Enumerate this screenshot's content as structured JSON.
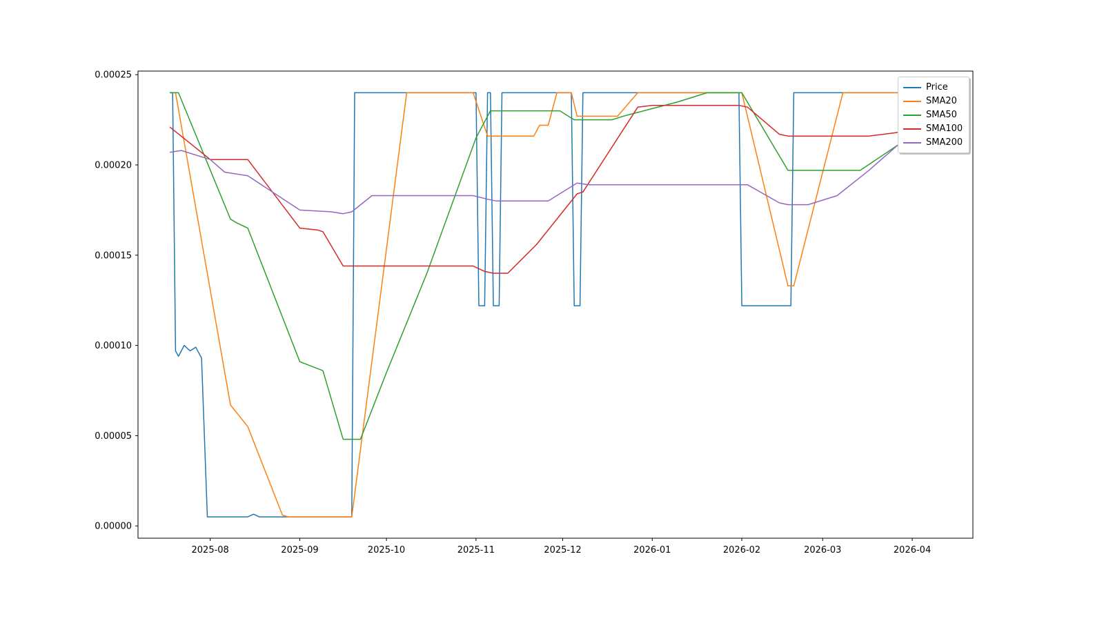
{
  "figure": {
    "background": "#ffffff",
    "axes_background": "#ffffff",
    "spine_color": "#000000",
    "tick_color": "#000000"
  },
  "chart_data": {
    "type": "line",
    "title": "",
    "xlabel": "",
    "ylabel": "",
    "grid": false,
    "x_axis": {
      "type": "date",
      "range": [
        "2025-07-07",
        "2026-04-22"
      ],
      "tick_dates": [
        "2025-08-01",
        "2025-09-01",
        "2025-10-01",
        "2025-11-01",
        "2025-12-01",
        "2026-01-01",
        "2026-02-01",
        "2026-03-01",
        "2026-04-01"
      ],
      "tick_labels": [
        "2025-08",
        "2025-09",
        "2025-10",
        "2025-11",
        "2025-12",
        "2026-01",
        "2026-02",
        "2026-03",
        "2026-04"
      ]
    },
    "y_axis": {
      "range": [
        -6.8e-06,
        0.000252
      ],
      "tick_values": [
        0.0,
        5e-05,
        0.0001,
        0.00015,
        0.0002,
        0.00025
      ],
      "tick_labels": [
        "0.00000",
        "0.00005",
        "0.00010",
        "0.00015",
        "0.00020",
        "0.00025"
      ]
    },
    "legend": {
      "position": "upper right",
      "entries": [
        "Price",
        "SMA20",
        "SMA50",
        "SMA100",
        "SMA200"
      ]
    },
    "series": [
      {
        "name": "Price",
        "color": "#1f77b4",
        "points": [
          [
            "2025-07-18",
            0.00024
          ],
          [
            "2025-07-19",
            0.00024
          ],
          [
            "2025-07-20",
            9.7e-05
          ],
          [
            "2025-07-21",
            9.4e-05
          ],
          [
            "2025-07-23",
            0.0001
          ],
          [
            "2025-07-25",
            9.7e-05
          ],
          [
            "2025-07-27",
            9.9e-05
          ],
          [
            "2025-07-29",
            9.3e-05
          ],
          [
            "2025-07-31",
            5e-06
          ],
          [
            "2025-08-14",
            5e-06
          ],
          [
            "2025-08-16",
            6.5e-06
          ],
          [
            "2025-08-18",
            5e-06
          ],
          [
            "2025-09-19",
            5e-06
          ],
          [
            "2025-09-20",
            0.00024
          ],
          [
            "2025-11-01",
            0.00024
          ],
          [
            "2025-11-02",
            0.000122
          ],
          [
            "2025-11-04",
            0.000122
          ],
          [
            "2025-11-05",
            0.00024
          ],
          [
            "2025-11-06",
            0.00024
          ],
          [
            "2025-11-07",
            0.000122
          ],
          [
            "2025-11-09",
            0.000122
          ],
          [
            "2025-11-10",
            0.00024
          ],
          [
            "2025-12-04",
            0.00024
          ],
          [
            "2025-12-05",
            0.000122
          ],
          [
            "2025-12-07",
            0.000122
          ],
          [
            "2025-12-08",
            0.00024
          ],
          [
            "2026-01-31",
            0.00024
          ],
          [
            "2026-02-01",
            0.000122
          ],
          [
            "2026-02-18",
            0.000122
          ],
          [
            "2026-02-19",
            0.00024
          ],
          [
            "2026-03-27",
            0.00024
          ]
        ]
      },
      {
        "name": "SMA20",
        "color": "#ff7f0e",
        "points": [
          [
            "2025-07-18",
            0.00024
          ],
          [
            "2025-07-20",
            0.00024
          ],
          [
            "2025-08-08",
            6.7e-05
          ],
          [
            "2025-08-14",
            5.5e-05
          ],
          [
            "2025-08-26",
            6e-06
          ],
          [
            "2025-08-28",
            5e-06
          ],
          [
            "2025-09-19",
            5e-06
          ],
          [
            "2025-10-08",
            0.00024
          ],
          [
            "2025-10-31",
            0.00024
          ],
          [
            "2025-11-05",
            0.000216
          ],
          [
            "2025-11-21",
            0.000216
          ],
          [
            "2025-11-23",
            0.000222
          ],
          [
            "2025-11-26",
            0.000222
          ],
          [
            "2025-11-29",
            0.00024
          ],
          [
            "2025-12-04",
            0.00024
          ],
          [
            "2025-12-06",
            0.000227
          ],
          [
            "2025-12-20",
            0.000227
          ],
          [
            "2025-12-27",
            0.00024
          ],
          [
            "2026-02-01",
            0.00024
          ],
          [
            "2026-02-17",
            0.000133
          ],
          [
            "2026-02-19",
            0.000133
          ],
          [
            "2026-03-08",
            0.00024
          ],
          [
            "2026-03-27",
            0.00024
          ]
        ]
      },
      {
        "name": "SMA50",
        "color": "#2ca02c",
        "points": [
          [
            "2025-07-18",
            0.00024
          ],
          [
            "2025-07-21",
            0.00024
          ],
          [
            "2025-08-08",
            0.00017
          ],
          [
            "2025-08-10",
            0.000168
          ],
          [
            "2025-08-14",
            0.000165
          ],
          [
            "2025-09-01",
            9.1e-05
          ],
          [
            "2025-09-09",
            8.6e-05
          ],
          [
            "2025-09-16",
            4.8e-05
          ],
          [
            "2025-09-22",
            4.8e-05
          ],
          [
            "2025-10-01",
            8.5e-05
          ],
          [
            "2025-10-15",
            0.00014
          ],
          [
            "2025-11-01",
            0.000215
          ],
          [
            "2025-11-06",
            0.00023
          ],
          [
            "2025-11-30",
            0.00023
          ],
          [
            "2025-12-05",
            0.000225
          ],
          [
            "2025-12-18",
            0.000225
          ],
          [
            "2025-12-22",
            0.000227
          ],
          [
            "2026-01-10",
            0.000235
          ],
          [
            "2026-01-20",
            0.00024
          ],
          [
            "2026-02-01",
            0.00024
          ],
          [
            "2026-02-17",
            0.000197
          ],
          [
            "2026-03-14",
            0.000197
          ],
          [
            "2026-03-27",
            0.000211
          ]
        ]
      },
      {
        "name": "SMA100",
        "color": "#d62728",
        "points": [
          [
            "2025-07-18",
            0.000221
          ],
          [
            "2025-07-25",
            0.000212
          ],
          [
            "2025-08-01",
            0.000203
          ],
          [
            "2025-08-14",
            0.000203
          ],
          [
            "2025-09-01",
            0.000165
          ],
          [
            "2025-09-07",
            0.000164
          ],
          [
            "2025-09-09",
            0.000163
          ],
          [
            "2025-09-16",
            0.000144
          ],
          [
            "2025-10-31",
            0.000144
          ],
          [
            "2025-11-04",
            0.000141
          ],
          [
            "2025-11-07",
            0.00014
          ],
          [
            "2025-11-12",
            0.00014
          ],
          [
            "2025-11-22",
            0.000156
          ],
          [
            "2025-12-06",
            0.000184
          ],
          [
            "2025-12-08",
            0.000185
          ],
          [
            "2025-12-27",
            0.000232
          ],
          [
            "2026-01-01",
            0.000233
          ],
          [
            "2026-01-31",
            0.000233
          ],
          [
            "2026-02-03",
            0.000232
          ],
          [
            "2026-02-14",
            0.000217
          ],
          [
            "2026-02-17",
            0.000216
          ],
          [
            "2026-03-17",
            0.000216
          ],
          [
            "2026-03-22",
            0.000217
          ],
          [
            "2026-03-27",
            0.000218
          ]
        ]
      },
      {
        "name": "SMA200",
        "color": "#9467bd",
        "points": [
          [
            "2025-07-18",
            0.000207
          ],
          [
            "2025-07-22",
            0.000208
          ],
          [
            "2025-08-01",
            0.000203
          ],
          [
            "2025-08-06",
            0.000196
          ],
          [
            "2025-08-10",
            0.000195
          ],
          [
            "2025-08-14",
            0.000194
          ],
          [
            "2025-09-01",
            0.000175
          ],
          [
            "2025-09-12",
            0.000174
          ],
          [
            "2025-09-16",
            0.000173
          ],
          [
            "2025-09-19",
            0.000174
          ],
          [
            "2025-09-26",
            0.000183
          ],
          [
            "2025-10-31",
            0.000183
          ],
          [
            "2025-11-05",
            0.000181
          ],
          [
            "2025-11-08",
            0.00018
          ],
          [
            "2025-11-26",
            0.00018
          ],
          [
            "2025-12-06",
            0.00019
          ],
          [
            "2025-12-10",
            0.000189
          ],
          [
            "2026-02-03",
            0.000189
          ],
          [
            "2026-02-14",
            0.000179
          ],
          [
            "2026-02-17",
            0.000178
          ],
          [
            "2026-02-24",
            0.000178
          ],
          [
            "2026-03-06",
            0.000183
          ],
          [
            "2026-03-17",
            0.000197
          ],
          [
            "2026-03-27",
            0.000211
          ]
        ]
      }
    ]
  }
}
